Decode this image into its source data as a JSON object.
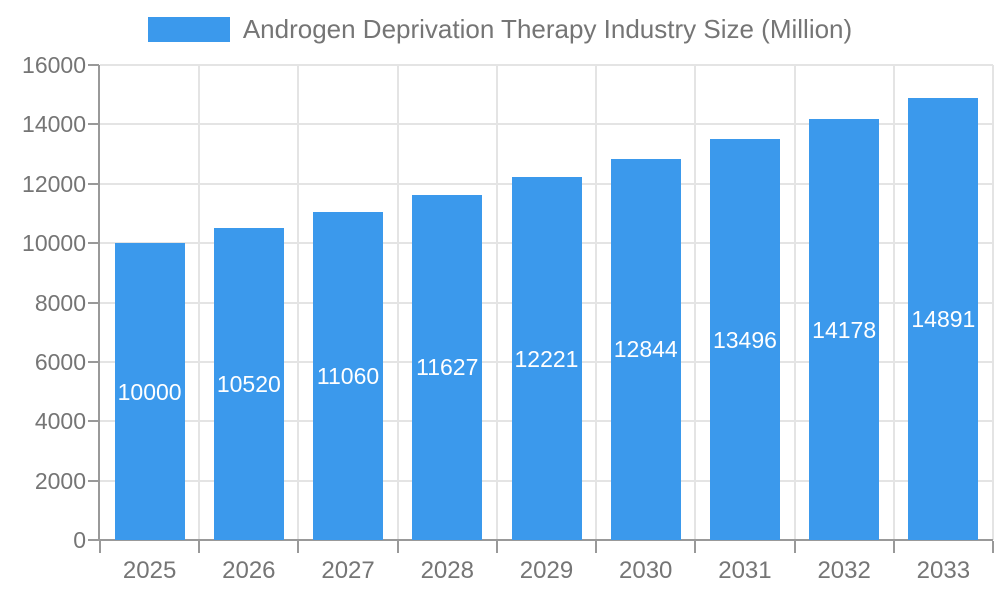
{
  "legend": {
    "label": "Androgen Deprivation Therapy Industry Size (Million)"
  },
  "chart_data": {
    "type": "bar",
    "title": "Androgen Deprivation Therapy Industry Size (Million)",
    "categories": [
      "2025",
      "2026",
      "2027",
      "2028",
      "2029",
      "2030",
      "2031",
      "2032",
      "2033"
    ],
    "values": [
      10000,
      10520,
      11060,
      11627,
      12221,
      12844,
      13496,
      14178,
      14891
    ],
    "series": [
      {
        "name": "Androgen Deprivation Therapy Industry Size (Million)",
        "values": [
          10000,
          10520,
          11060,
          11627,
          12221,
          12844,
          13496,
          14178,
          14891
        ]
      }
    ],
    "xlabel": "",
    "ylabel": "",
    "ylim": [
      0,
      16000
    ],
    "ytick_step": 2000,
    "ytick_labels": [
      "0",
      "2000",
      "4000",
      "6000",
      "8000",
      "10000",
      "12000",
      "14000",
      "16000"
    ],
    "grid": true,
    "legend_position": "top",
    "value_labels": "inside-middle",
    "colors": {
      "bar": "#3B99EC",
      "bar_label_text": "#FFFFFF",
      "axis_text": "#757575",
      "legend_text": "#757575",
      "gridline": "#E4E4E4",
      "axis_line": "#999999",
      "background": "#FFFFFF"
    }
  }
}
